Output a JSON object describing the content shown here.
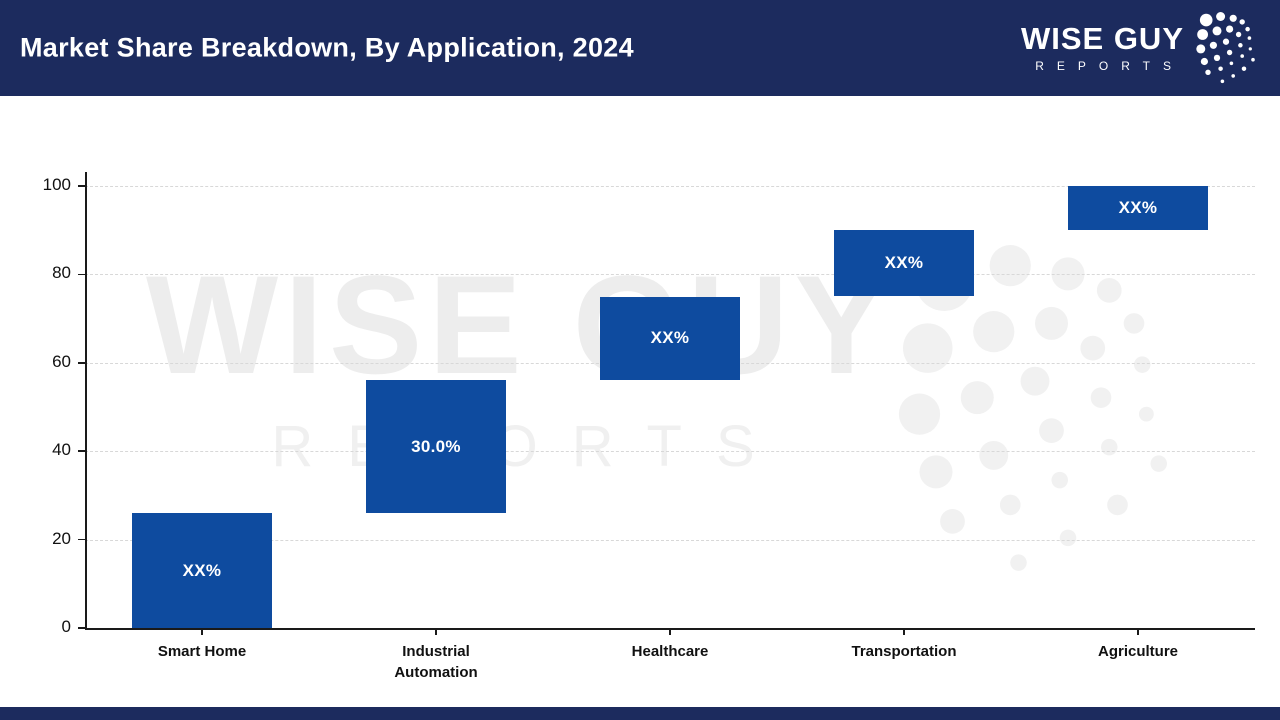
{
  "header": {
    "title": "Market Share Breakdown, By Application, 2024",
    "bg_color": "#1c2b5e",
    "logo": {
      "line1": "WISE GUY",
      "line2": "REPORTS"
    }
  },
  "watermark": {
    "line1": "WISE GUY",
    "line2": "REPORTS"
  },
  "chart_data": {
    "type": "bar",
    "subtype": "waterfall",
    "title": "Market Share Breakdown, By Application, 2024",
    "categories": [
      "Smart Home",
      "Industrial Automation",
      "Healthcare",
      "Transportation",
      "Agriculture"
    ],
    "segments": [
      {
        "category": "Smart Home",
        "start": 0,
        "end": 26,
        "label": "XX%"
      },
      {
        "category": "Industrial Automation",
        "start": 26,
        "end": 56,
        "label": "30.0%"
      },
      {
        "category": "Healthcare",
        "start": 56,
        "end": 75,
        "label": "XX%"
      },
      {
        "category": "Transportation",
        "start": 75,
        "end": 90,
        "label": "XX%"
      },
      {
        "category": "Agriculture",
        "start": 90,
        "end": 100,
        "label": "XX%"
      }
    ],
    "ylim": [
      0,
      100
    ],
    "yticks": [
      0,
      20,
      40,
      60,
      80,
      100
    ],
    "grid": true,
    "legend": false,
    "bar_color": "#0e4b9f",
    "axis_color": "#1a1a1a",
    "gridline_color": "#d8d8d8",
    "bar_label_color": "#ffffff"
  }
}
